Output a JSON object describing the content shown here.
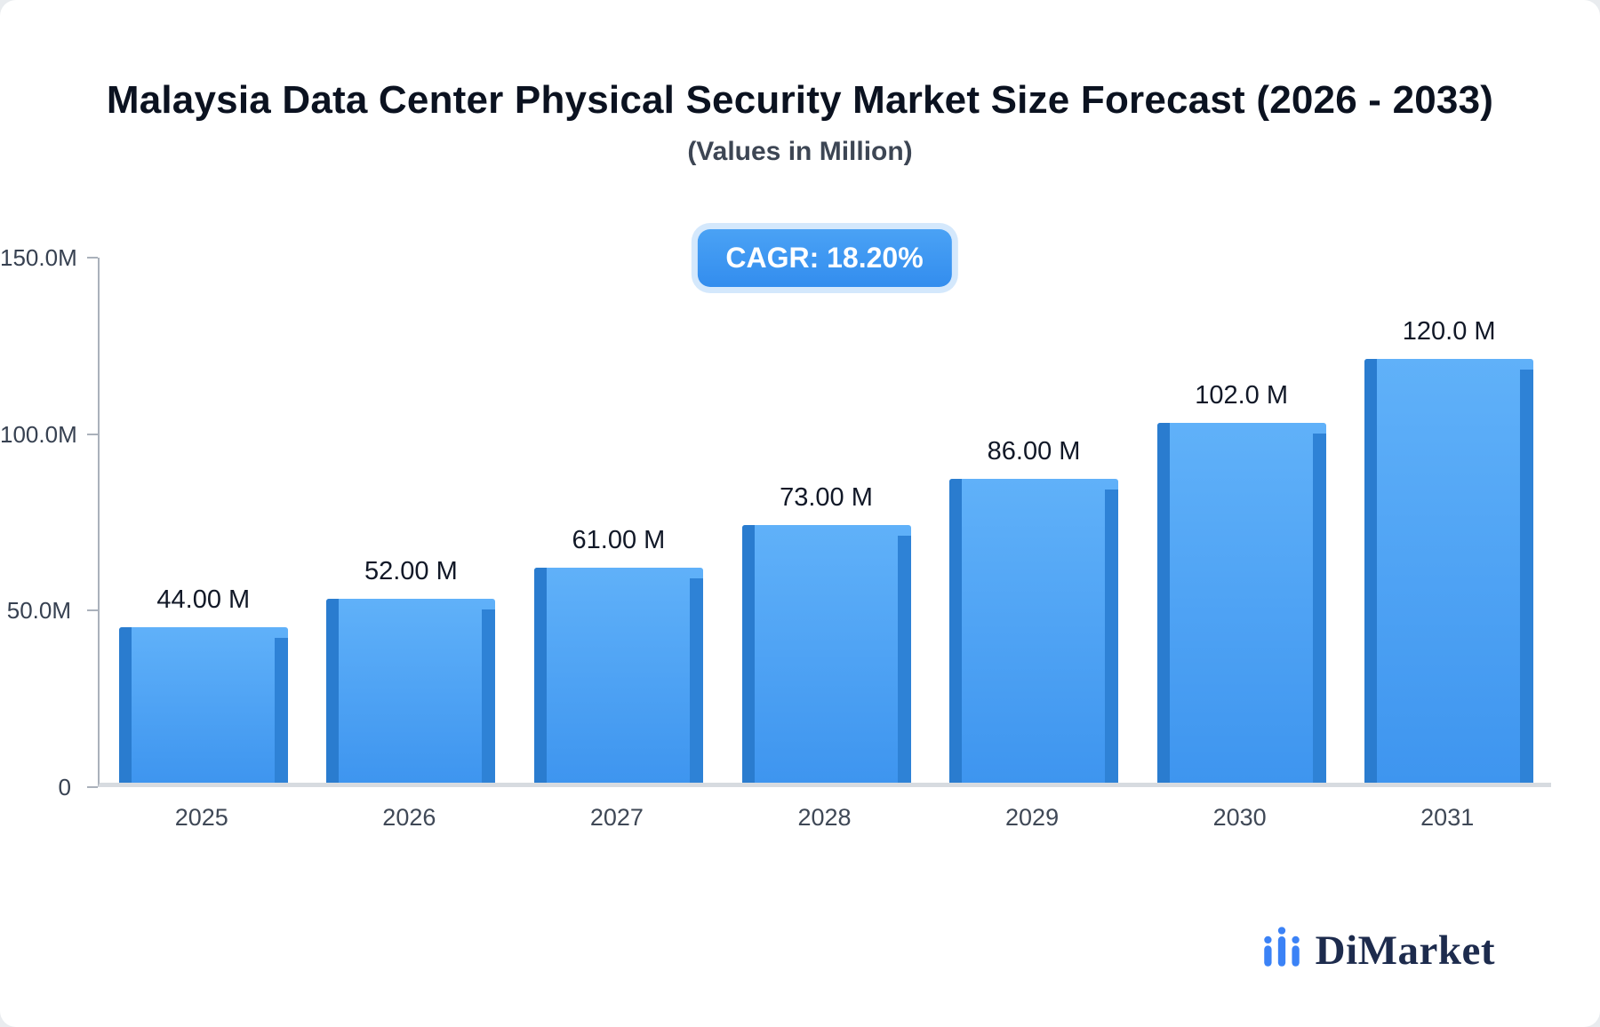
{
  "page": {
    "title": "Malaysia Data Center Physical Security Market Size Forecast (2026 - 2033)",
    "subtitle": "(Values in Million)",
    "cagr_badge": "CAGR: 18.20%"
  },
  "logo": {
    "brand": "DiMarket",
    "icon": "bar-chart-dots-icon"
  },
  "colors": {
    "bar_face": "#46a0f4",
    "bar_face_light": "#60b1f9",
    "bar_side_left": "#2a7ccf",
    "bar_side_right": "#2e82d6",
    "badge_bg": "#3e96f2",
    "badge_text": "#ffffff",
    "axis_line": "#aab1bb",
    "baseline": "#d7dbe0",
    "title_text": "#0b1220",
    "brand_text": "#1d2b4d",
    "logo_icon_blue": "#3b82f6"
  },
  "chart_data": {
    "type": "bar",
    "title": "Malaysia Data Center Physical Security Market Size Forecast (2026 - 2033)",
    "subtitle": "(Values in Million)",
    "categories": [
      "2025",
      "2026",
      "2027",
      "2028",
      "2029",
      "2030",
      "2031"
    ],
    "values": [
      44,
      52,
      61,
      73,
      86,
      102,
      120
    ],
    "value_labels": [
      "44.00 M",
      "52.00 M",
      "61.00 M",
      "73.00 M",
      "86.00 M",
      "102.0 M",
      "120.0 M"
    ],
    "unit": "Million",
    "cagr": "18.20%",
    "xlabel": "",
    "ylabel": "",
    "ylim": [
      0,
      150
    ],
    "yticks": [
      0,
      50,
      100,
      150
    ],
    "ytick_labels": [
      "0",
      "50.0M",
      "100.0M",
      "150.0M"
    ],
    "grid": false,
    "legend": false
  }
}
